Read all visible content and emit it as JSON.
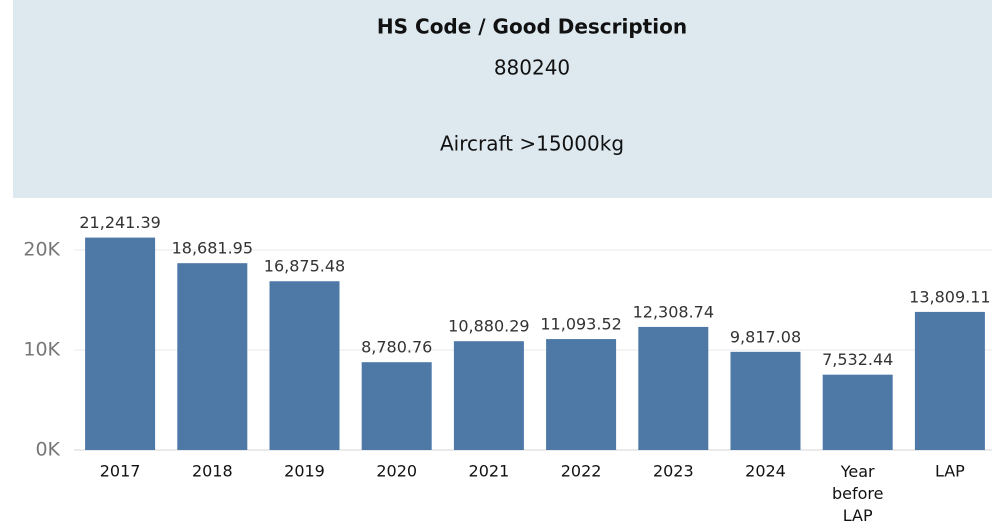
{
  "chart_data": {
    "type": "bar",
    "title": "HS Code / Good Description",
    "code": "880240",
    "description": "Aircraft >15000kg",
    "categories": [
      "2017",
      "2018",
      "2019",
      "2020",
      "2021",
      "2022",
      "2023",
      "2024",
      "Year before LAP",
      "LAP"
    ],
    "values": [
      21241.39,
      18681.95,
      16875.48,
      8780.76,
      10880.29,
      11093.52,
      12308.74,
      9817.08,
      7532.44,
      13809.11
    ],
    "value_labels": [
      "21,241.39",
      "18,681.95",
      "16,875.48",
      "8,780.76",
      "10,880.29",
      "11,093.52",
      "12,308.74",
      "9,817.08",
      "7,532.44",
      "13,809.11"
    ],
    "color": "#4e79a7",
    "ylim": [
      0,
      24000
    ],
    "yticks": [
      {
        "value": 0,
        "label": "0K"
      },
      {
        "value": 10000,
        "label": "10K"
      },
      {
        "value": 20000,
        "label": "20K"
      }
    ],
    "grid": true
  }
}
